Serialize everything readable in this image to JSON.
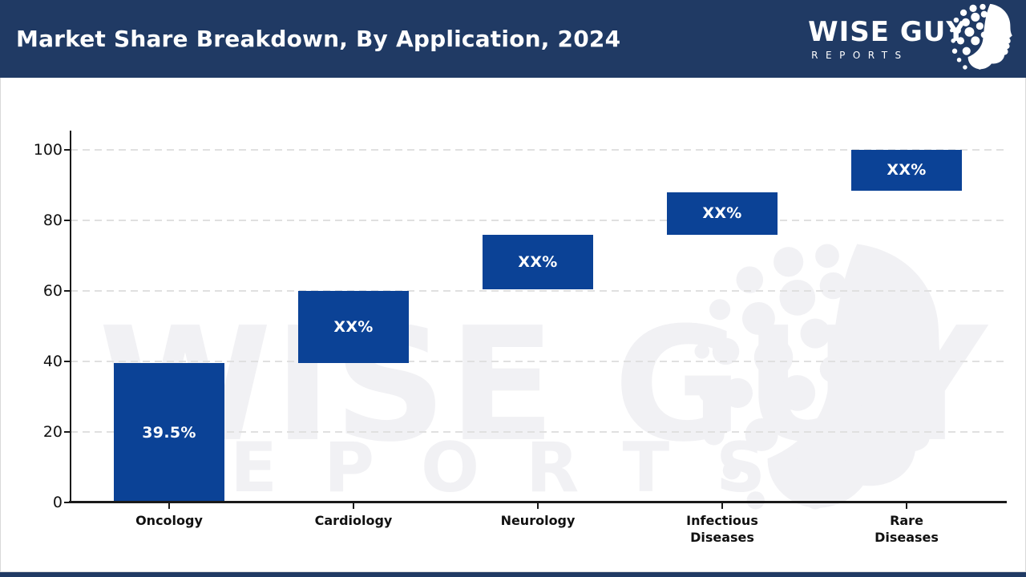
{
  "header": {
    "title": "Market Share Breakdown, By Application, 2024",
    "bg_color": "#203a64",
    "logo": {
      "line1": "WISE GUY",
      "line2": "REPORTS"
    }
  },
  "watermark": {
    "line1": "WISE GUY",
    "line2": "REPORTS"
  },
  "footer": {
    "bg_color": "#203a64"
  },
  "colors": {
    "bar": "#0b4296",
    "header_navy": "#203a64",
    "gridline": "#e0e0e0",
    "axis": "#1a1a1a",
    "bar_label_text": "#ffffff",
    "watermark": "#f1f1f4"
  },
  "chart_data": {
    "type": "bar",
    "subtype": "waterfall-floating-bars",
    "title": "Market Share Breakdown, By Application, 2024",
    "categories": [
      "Oncology",
      "Cardiology",
      "Neurology",
      "Infectious Diseases",
      "Rare Diseases"
    ],
    "segments": [
      {
        "category": "Oncology",
        "start": 0,
        "end": 39.5,
        "label": "39.5%"
      },
      {
        "category": "Cardiology",
        "start": 39.5,
        "end": 60,
        "label": "XX%"
      },
      {
        "category": "Neurology",
        "start": 60.5,
        "end": 76,
        "label": "XX%"
      },
      {
        "category": "Infectious Diseases",
        "start": 76,
        "end": 88,
        "label": "XX%"
      },
      {
        "category": "Rare Diseases",
        "start": 88.5,
        "end": 100,
        "label": "XX%"
      }
    ],
    "ylim": [
      0,
      100
    ],
    "yticks": [
      0,
      20,
      40,
      60,
      80,
      100
    ],
    "xlabel": "",
    "ylabel": "",
    "grid": "horizontal-dashed",
    "legend": null
  }
}
